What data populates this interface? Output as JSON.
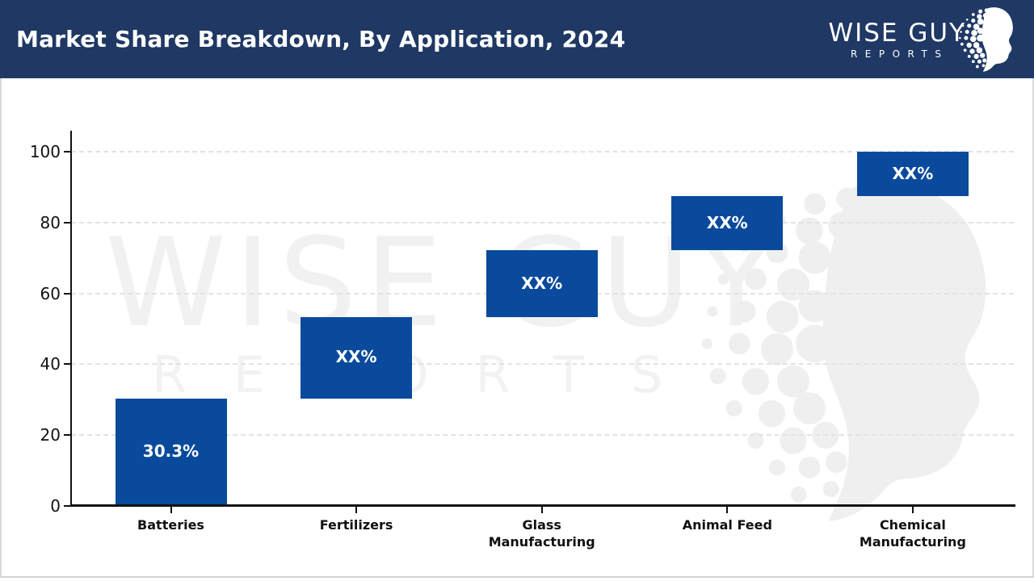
{
  "header": {
    "title": "Market Share Breakdown, By Application, 2024",
    "bg_color": "#1f3864",
    "logo": {
      "name": "WISE GUY",
      "subtitle": "REPORTS"
    }
  },
  "watermark": {
    "name": "WISE GUY",
    "subtitle": "REPORTS"
  },
  "chart_data": {
    "type": "bar",
    "subtype": "waterfall",
    "title": "Market Share Breakdown, By Application, 2024",
    "categories": [
      "Batteries",
      "Fertilizers",
      "Glass Manufacturing",
      "Animal Feed",
      "Chemical Manufacturing"
    ],
    "series": [
      {
        "category": "Batteries",
        "start": 0,
        "end": 30.3,
        "label": "30.3%"
      },
      {
        "category": "Fertilizers",
        "start": 30.3,
        "end": 53.3,
        "label": "XX%"
      },
      {
        "category": "Glass Manufacturing",
        "start": 53.3,
        "end": 72.2,
        "label": "XX%"
      },
      {
        "category": "Animal Feed",
        "start": 72.2,
        "end": 87.4,
        "label": "XX%"
      },
      {
        "category": "Chemical Manufacturing",
        "start": 87.4,
        "end": 100,
        "label": "XX%"
      }
    ],
    "ylim": [
      0,
      100
    ],
    "yticks": [
      0,
      20,
      40,
      60,
      80,
      100
    ],
    "xlabel": "",
    "ylabel": "",
    "grid": "horizontal-dashed",
    "legend": "none",
    "bar_color": "#0a4a9c",
    "bar_label_color": "#ffffff",
    "axis_color": "#111111",
    "gridline_color": "#e2e2e2"
  }
}
